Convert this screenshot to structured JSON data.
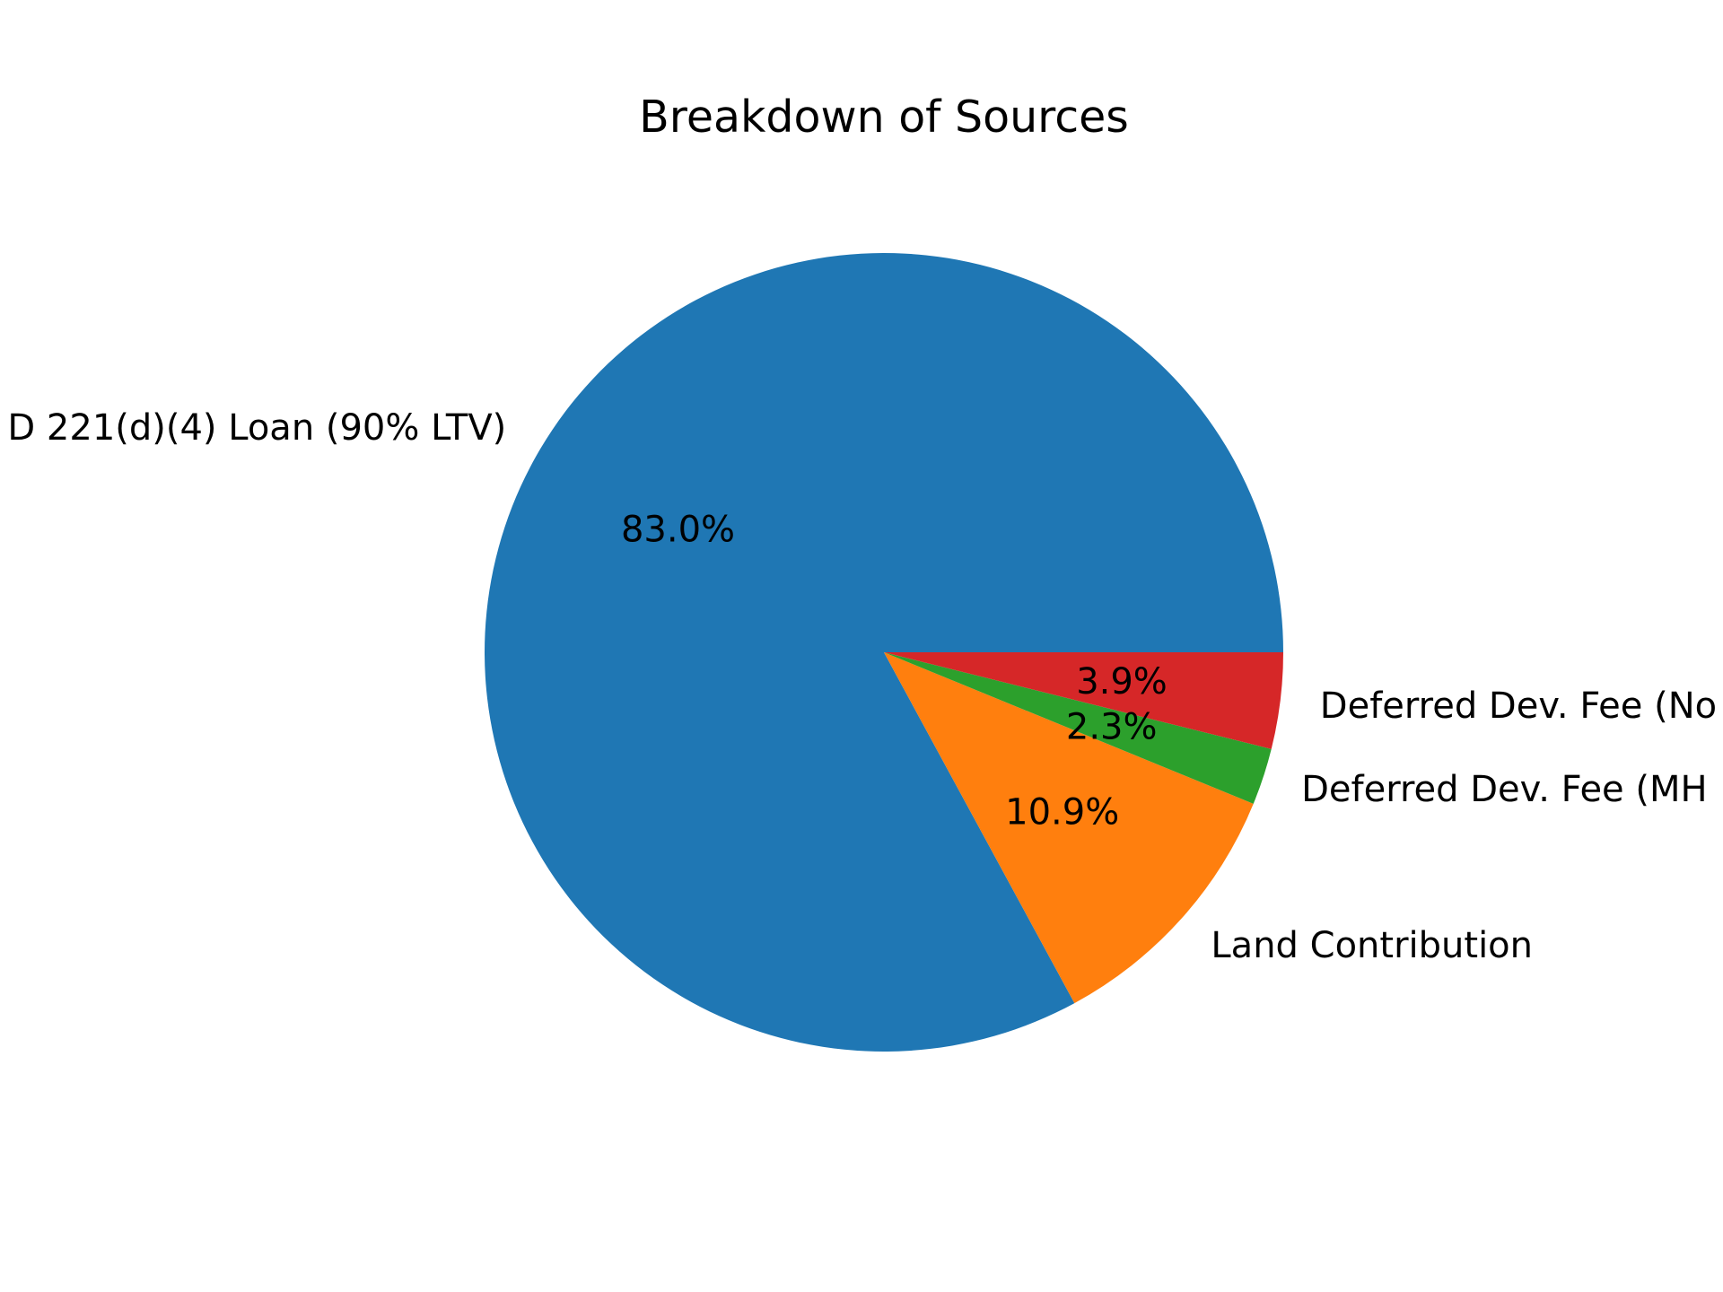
{
  "chart_data": {
    "type": "pie",
    "title": "Breakdown of Sources",
    "start_angle": 0,
    "direction": "counterclockwise",
    "label_radius": 1.1,
    "autopct_radius": 0.6,
    "background_color": "#ffffff",
    "text_color": "#000000",
    "slices": [
      {
        "label": "D 221(d)(4) Loan (90% LTV)",
        "value": 83.0,
        "pct_label": "83.0%",
        "color": "#1f77b4"
      },
      {
        "label": "Land Contribution",
        "value": 10.9,
        "pct_label": "10.9%",
        "color": "#ff7f0e"
      },
      {
        "label": "Deferred Dev. Fee (MH",
        "value": 2.3,
        "pct_label": "2.3%",
        "color": "#2ca02c"
      },
      {
        "label": "Deferred Dev. Fee (No",
        "value": 3.9,
        "pct_label": "3.9%",
        "color": "#d62728"
      }
    ]
  }
}
